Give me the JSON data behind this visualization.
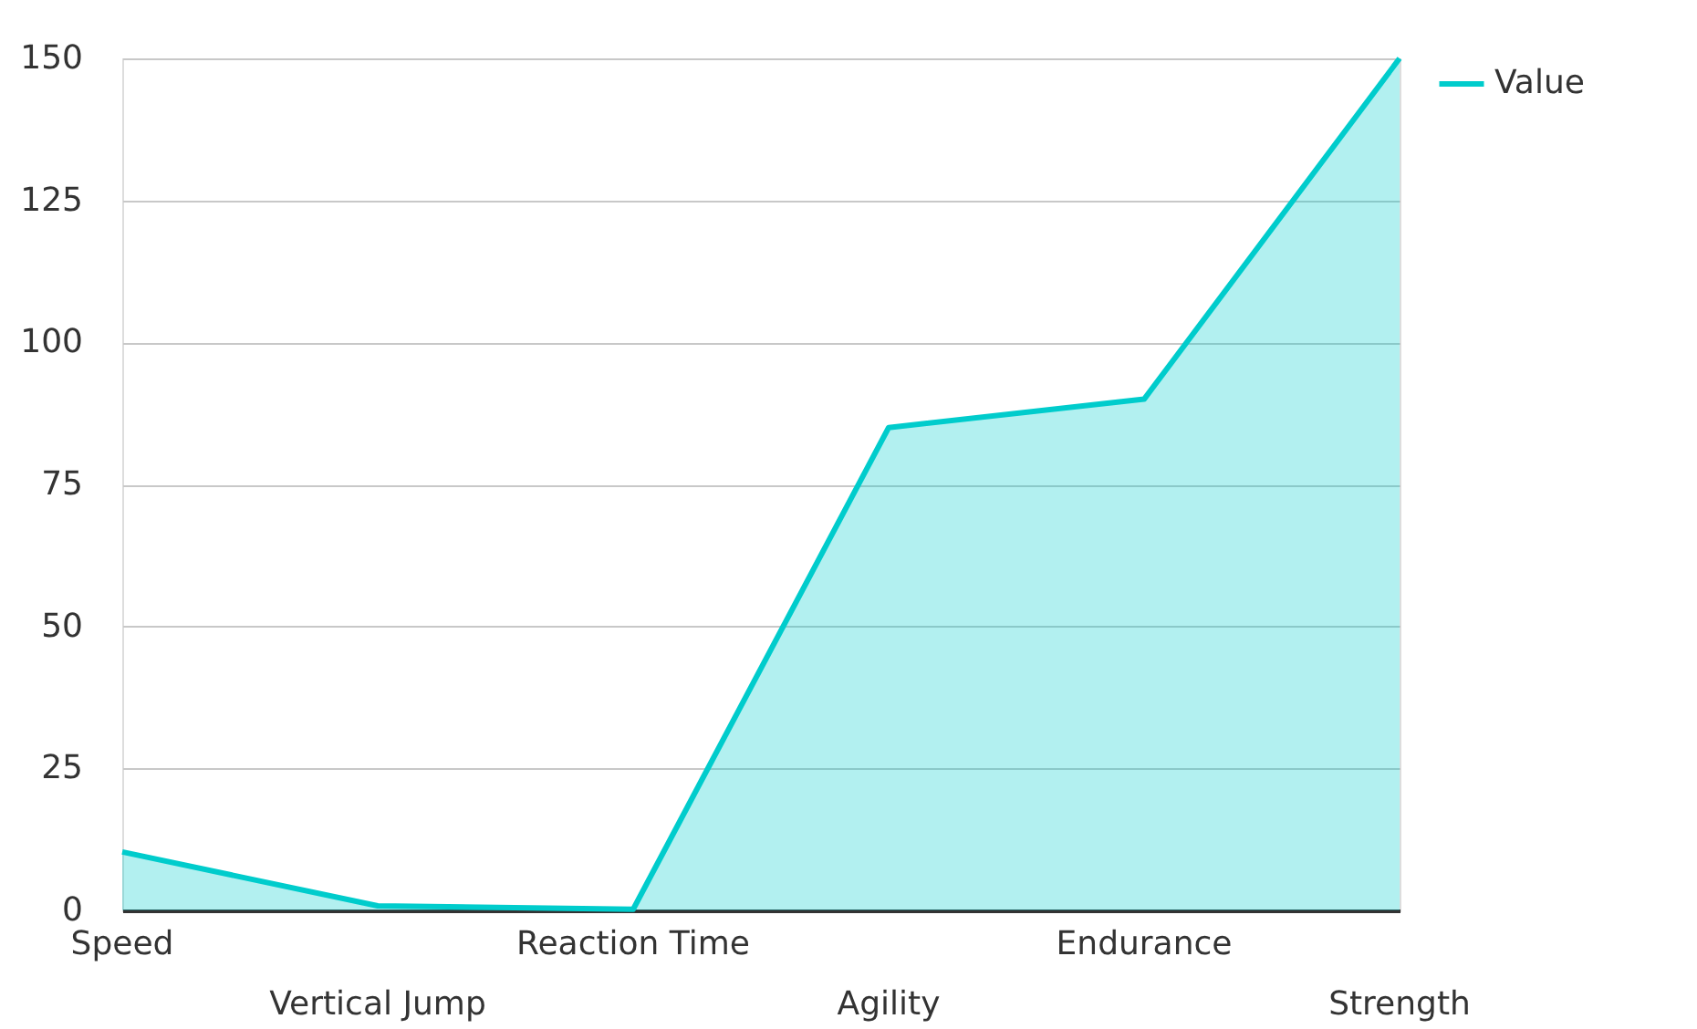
{
  "chart_data": {
    "type": "area",
    "categories": [
      "Speed",
      "Vertical Jump",
      "Reaction Time",
      "Agility",
      "Endurance",
      "Strength"
    ],
    "series": [
      {
        "name": "Value",
        "color": "#00cccc",
        "values": [
          10.3,
          0.8,
          0.2,
          85,
          90,
          150
        ]
      }
    ],
    "ylim": [
      0,
      150
    ],
    "yticks": [
      0,
      25,
      50,
      75,
      100,
      125,
      150
    ],
    "grid": "y",
    "legend": "top right"
  }
}
